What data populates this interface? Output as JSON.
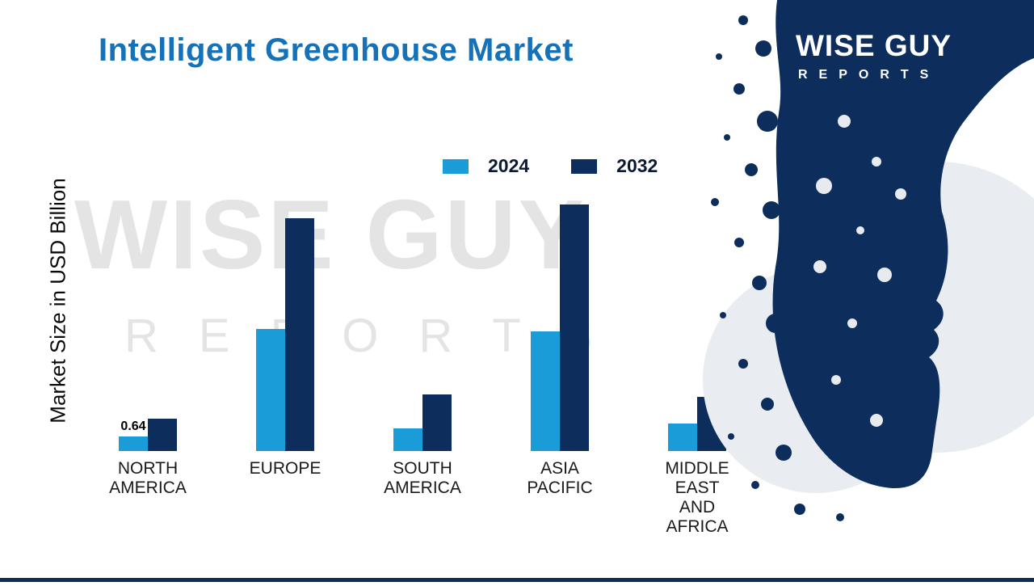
{
  "page": {
    "title": "Intelligent Greenhouse Market",
    "watermark": {
      "line1": "WISE GUY",
      "line2": "REPORTS"
    },
    "logo": {
      "line1": "WISE GUY",
      "line2": "REPORTS"
    },
    "colors": {
      "title_blue": "#1571b8",
      "series_2024_blue": "#1a9cd8",
      "series_2032_navy": "#0d2d5c",
      "watermark_gray": "#e4e4e4"
    }
  },
  "chart_data": {
    "type": "bar",
    "title": "Intelligent Greenhouse Market",
    "xlabel": "",
    "ylabel": "Market Size in USD Billion",
    "categories": [
      "NORTH AMERICA",
      "EUROPE",
      "SOUTH AMERICA",
      "ASIA PACIFIC",
      "MIDDLE EAST AND AFRICA"
    ],
    "category_lines": [
      [
        "NORTH",
        "AMERICA"
      ],
      [
        "EUROPE"
      ],
      [
        "SOUTH",
        "AMERICA"
      ],
      [
        "ASIA",
        "PACIFIC"
      ],
      [
        "MIDDLE",
        "EAST",
        "AND",
        "AFRICA"
      ]
    ],
    "series": [
      {
        "name": "2024",
        "color": "#1a9cd8",
        "values": [
          0.64,
          5.4,
          1.0,
          5.3,
          1.2
        ]
      },
      {
        "name": "2032",
        "color": "#0d2d5c",
        "values": [
          1.42,
          10.3,
          2.5,
          10.9,
          2.4
        ]
      }
    ],
    "bar_label": {
      "series_index": 0,
      "category_index": 0,
      "text": "0.64"
    },
    "ylim": [
      0,
      12
    ],
    "grid": false,
    "legend_position": "top",
    "axis_visible": false
  }
}
